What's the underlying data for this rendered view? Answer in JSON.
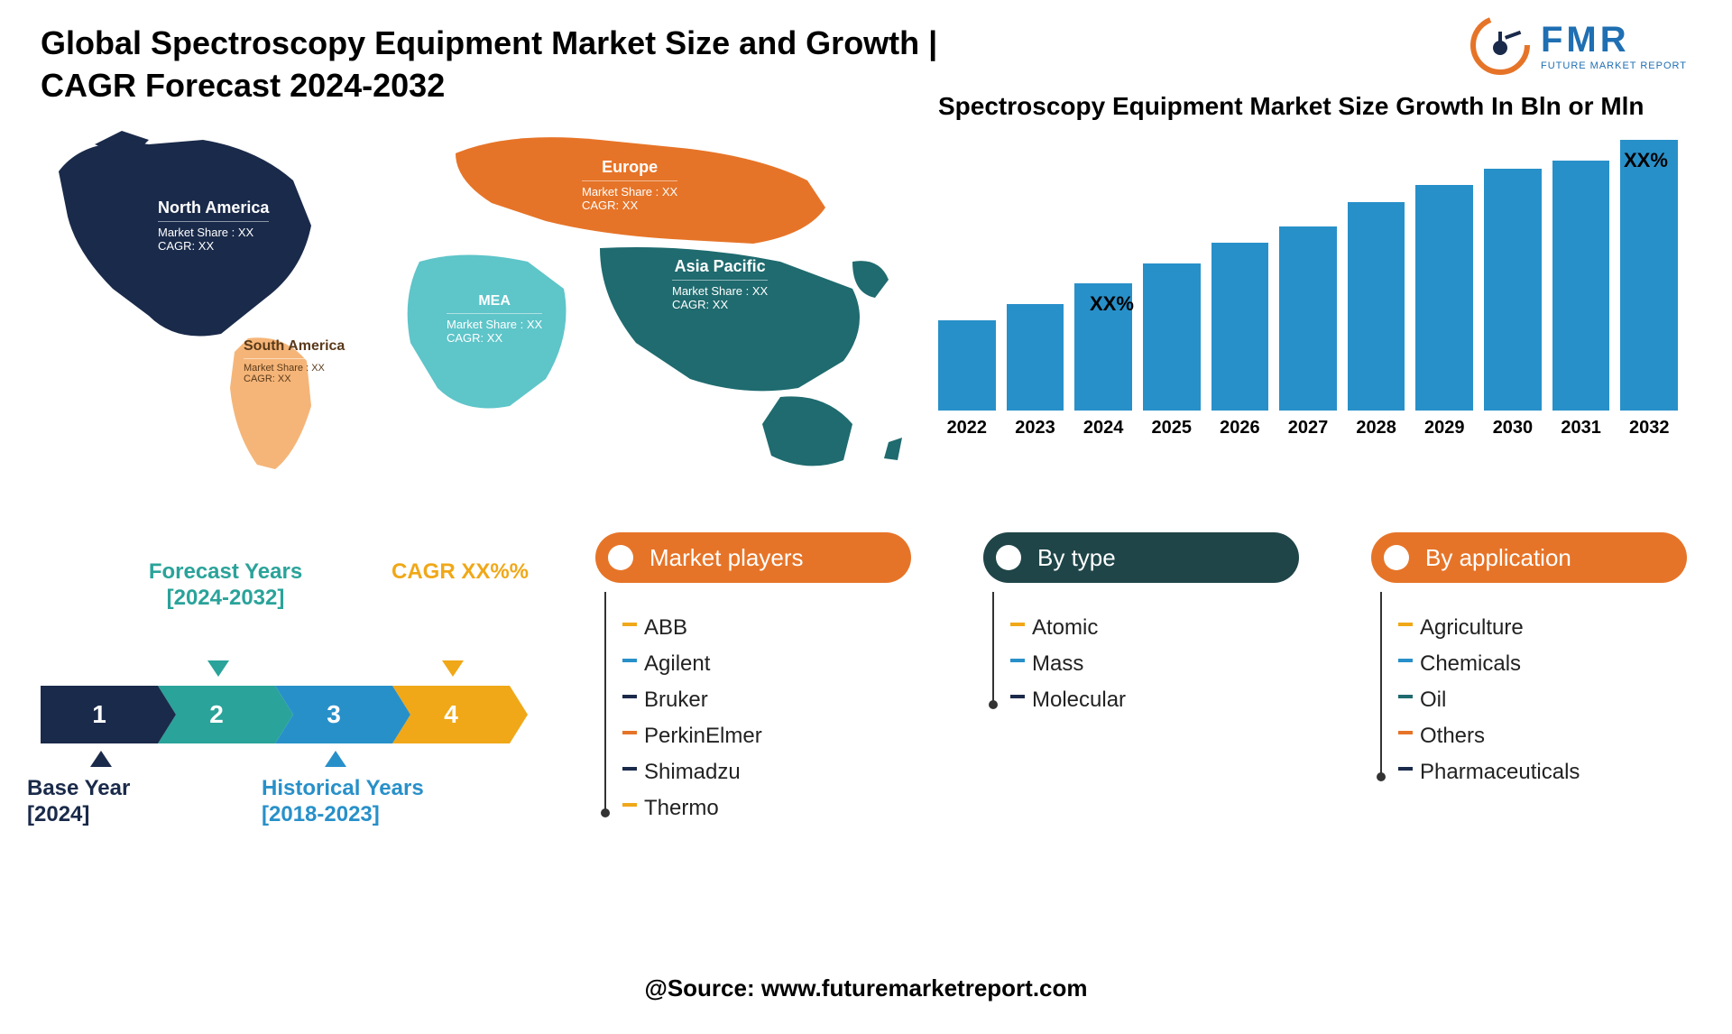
{
  "title": "Global Spectroscopy Equipment Market Size and Growth | CAGR Forecast 2024-2032",
  "logo": {
    "main": "FMR",
    "sub": "FUTURE MARKET REPORT"
  },
  "map": {
    "regions": [
      {
        "name": "North America",
        "share": "Market Share : XX",
        "cagr": "CAGR: XX",
        "color": "#1a2a4a"
      },
      {
        "name": "South America",
        "share": "Market Share : XX",
        "cagr": "CAGR: XX",
        "color": "#f5b578"
      },
      {
        "name": "Europe",
        "share": "Market Share : XX",
        "cagr": "CAGR: XX",
        "color": "#e67428"
      },
      {
        "name": "MEA",
        "share": "Market Share : XX",
        "cagr": "CAGR: XX",
        "color": "#5ec5c9"
      },
      {
        "name": "Asia Pacific",
        "share": "Market Share : XX",
        "cagr": "CAGR: XX",
        "color": "#1f6b6f"
      }
    ]
  },
  "chart": {
    "type": "bar",
    "title": "Spectroscopy Equipment Market Size Growth In Bln or Mln",
    "categories": [
      "2022",
      "2023",
      "2024",
      "2025",
      "2026",
      "2027",
      "2028",
      "2029",
      "2030",
      "2031",
      "2032"
    ],
    "values": [
      110,
      130,
      155,
      180,
      205,
      225,
      255,
      275,
      295,
      305,
      330
    ],
    "bar_color": "#2890c9",
    "annotations": [
      {
        "index": 2,
        "text": "XX%"
      },
      {
        "index": 10,
        "text": "XX%"
      }
    ],
    "label_fontsize": 20,
    "title_fontsize": 28,
    "background_color": "#ffffff"
  },
  "timeline": {
    "steps": [
      {
        "num": "1",
        "color": "#1a2a4a",
        "label": "Base Year [2024]",
        "label_color": "#1a2a4a",
        "pos": "bottom"
      },
      {
        "num": "2",
        "color": "#2aa39a",
        "label": "Forecast Years [2024-2032]",
        "label_color": "#2aa39a",
        "pos": "top"
      },
      {
        "num": "3",
        "color": "#2890c9",
        "label": "Historical Years [2018-2023]",
        "label_color": "#2890c9",
        "pos": "bottom"
      },
      {
        "num": "4",
        "color": "#f0a818",
        "label": "CAGR XX%%",
        "label_color": "#f0a818",
        "pos": "top"
      }
    ]
  },
  "columns": [
    {
      "header": "Market players",
      "pill_color": "#e67428",
      "items": [
        {
          "text": "ABB",
          "tick_color": "#f0a818"
        },
        {
          "text": "Agilent",
          "tick_color": "#2890c9"
        },
        {
          "text": "Bruker",
          "tick_color": "#1a2a4a"
        },
        {
          "text": "PerkinElmer",
          "tick_color": "#e67428"
        },
        {
          "text": "Shimadzu",
          "tick_color": "#1a2a4a"
        },
        {
          "text": "Thermo",
          "tick_color": "#f0a818"
        }
      ]
    },
    {
      "header": "By type",
      "pill_color": "#1f4548",
      "items": [
        {
          "text": "Atomic",
          "tick_color": "#f0a818"
        },
        {
          "text": "Mass",
          "tick_color": "#2890c9"
        },
        {
          "text": "Molecular",
          "tick_color": "#1a2a4a"
        }
      ]
    },
    {
      "header": "By application",
      "pill_color": "#e67428",
      "items": [
        {
          "text": "Agriculture",
          "tick_color": "#f0a818"
        },
        {
          "text": "Chemicals",
          "tick_color": "#2890c9"
        },
        {
          "text": "Oil",
          "tick_color": "#1f6b6f"
        },
        {
          "text": "Others",
          "tick_color": "#e67428"
        },
        {
          "text": "Pharmaceuticals",
          "tick_color": "#1a2a4a"
        }
      ]
    }
  ],
  "source": "@Source: www.futuremarketreport.com"
}
